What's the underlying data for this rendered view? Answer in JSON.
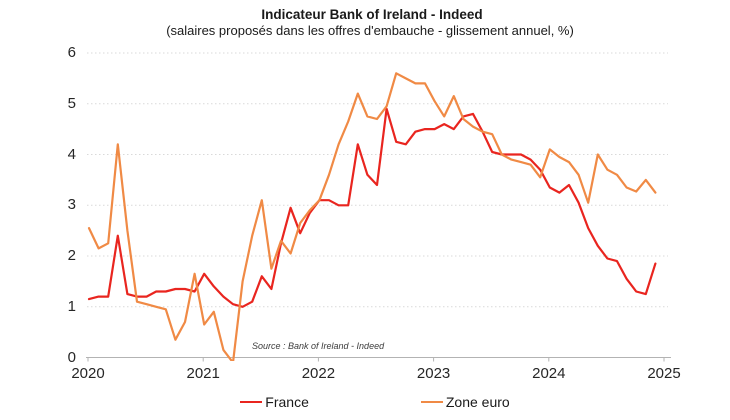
{
  "header": {
    "title": "Indicateur Bank of Ireland - Indeed",
    "subtitle": "(salaires proposés dans les offres d'embauche - glissement annuel, %)"
  },
  "source_note": "Source : Bank of Ireland - Indeed",
  "legend": {
    "items": [
      {
        "label": "France",
        "color": "#e9251f"
      },
      {
        "label": "Zone euro",
        "color": "#f08a45"
      }
    ]
  },
  "chart_data": {
    "type": "line",
    "title": "Indicateur Bank of Ireland - Indeed",
    "subtitle": "(salaires proposés dans les offres d'embauche - glissement annuel, %)",
    "x_unit": "month",
    "x_start": "2020-01",
    "x_end": "2024-12",
    "x_tick_labels": [
      "2020",
      "2021",
      "2022",
      "2023",
      "2024",
      "2025"
    ],
    "y_ticks": [
      0,
      1,
      2,
      3,
      4,
      5,
      6
    ],
    "ylim": [
      0,
      6
    ],
    "grid": true,
    "legend_position": "bottom",
    "axis_color": "#b3b3b3",
    "grid_color": "#d9d9d9",
    "series": [
      {
        "name": "France",
        "color": "#e9251f",
        "values": [
          1.15,
          1.2,
          1.2,
          2.4,
          1.25,
          1.2,
          1.2,
          1.3,
          1.3,
          1.35,
          1.35,
          1.3,
          1.65,
          1.4,
          1.2,
          1.05,
          1.0,
          1.1,
          1.6,
          1.35,
          2.25,
          2.95,
          2.45,
          2.85,
          3.1,
          3.1,
          3.0,
          3.0,
          4.2,
          3.6,
          3.4,
          4.9,
          4.25,
          4.2,
          4.45,
          4.5,
          4.5,
          4.6,
          4.5,
          4.75,
          4.8,
          4.45,
          4.05,
          4.0,
          4.0,
          4.0,
          3.9,
          3.7,
          3.35,
          3.25,
          3.4,
          3.05,
          2.55,
          2.2,
          1.95,
          1.9,
          1.55,
          1.3,
          1.25,
          1.85
        ]
      },
      {
        "name": "Zone euro",
        "color": "#f08a45",
        "values": [
          2.55,
          2.15,
          2.25,
          4.2,
          2.5,
          1.1,
          1.05,
          1.0,
          0.95,
          0.35,
          0.7,
          1.65,
          0.65,
          0.9,
          0.15,
          -0.1,
          1.5,
          2.4,
          3.1,
          1.75,
          2.3,
          2.05,
          2.65,
          2.9,
          3.1,
          3.6,
          4.2,
          4.65,
          5.2,
          4.75,
          4.7,
          4.95,
          5.6,
          5.5,
          5.4,
          5.4,
          5.05,
          4.75,
          5.15,
          4.7,
          4.55,
          4.45,
          4.4,
          4.0,
          3.9,
          3.85,
          3.8,
          3.55,
          4.1,
          3.95,
          3.85,
          3.6,
          3.05,
          4.0,
          3.7,
          3.6,
          3.35,
          3.27,
          3.5,
          3.25
        ]
      }
    ]
  }
}
